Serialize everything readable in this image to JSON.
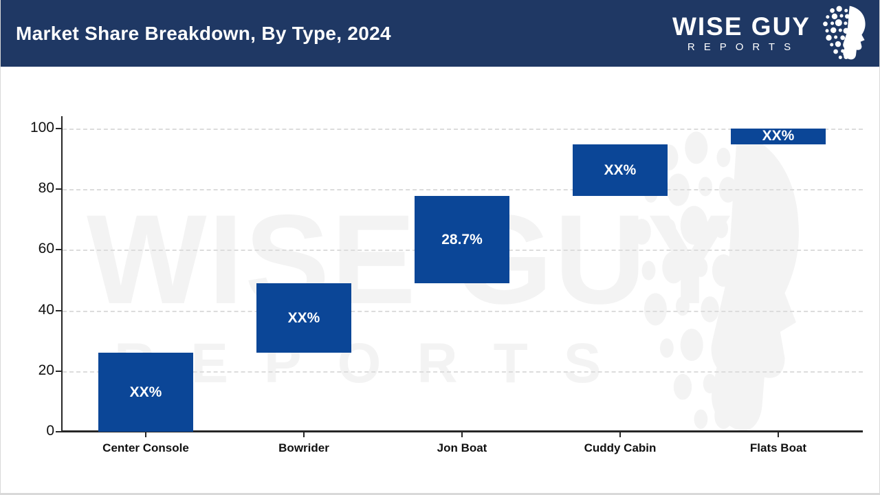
{
  "header": {
    "title": "Market Share Breakdown, By Type, 2024",
    "logo": {
      "line1": "WISE GUY",
      "line2": "REPORTS"
    }
  },
  "watermark": {
    "line1": "WISE GUY",
    "line2": "REPORTS"
  },
  "colors": {
    "header_navy": "#1f3864",
    "bar_blue": "#0b4697",
    "grid_gray": "#dcdcdc",
    "axis_dark": "#262626",
    "watermark_gray": "#f3f3f3",
    "label_white": "#ffffff"
  },
  "chart_data": {
    "type": "bar",
    "subtype": "waterfall",
    "title": "Market Share Breakdown, By Type, 2024",
    "categories": [
      "Center Console",
      "Bowrider",
      "Jon Boat",
      "Cuddy Cabin",
      "Flats Boat"
    ],
    "segments": [
      {
        "category": "Center Console",
        "start": 0,
        "end": 26,
        "value": 26,
        "label": "XX%"
      },
      {
        "category": "Bowrider",
        "start": 26,
        "end": 49,
        "value": 23,
        "label": "XX%"
      },
      {
        "category": "Jon Boat",
        "start": 49,
        "end": 77.7,
        "value": 28.7,
        "label": "28.7%"
      },
      {
        "category": "Cuddy Cabin",
        "start": 77.7,
        "end": 94.8,
        "value": 17.1,
        "label": "XX%"
      },
      {
        "category": "Flats Boat",
        "start": 94.8,
        "end": 100,
        "value": 5.2,
        "label": "XX%"
      }
    ],
    "xlabel": "",
    "ylabel": "",
    "ylim": [
      0,
      100
    ],
    "y_ticks": [
      0,
      20,
      40,
      60,
      80,
      100
    ],
    "grid": "horizontal dashed",
    "legend": "none",
    "bar_color": "#0b4697"
  }
}
